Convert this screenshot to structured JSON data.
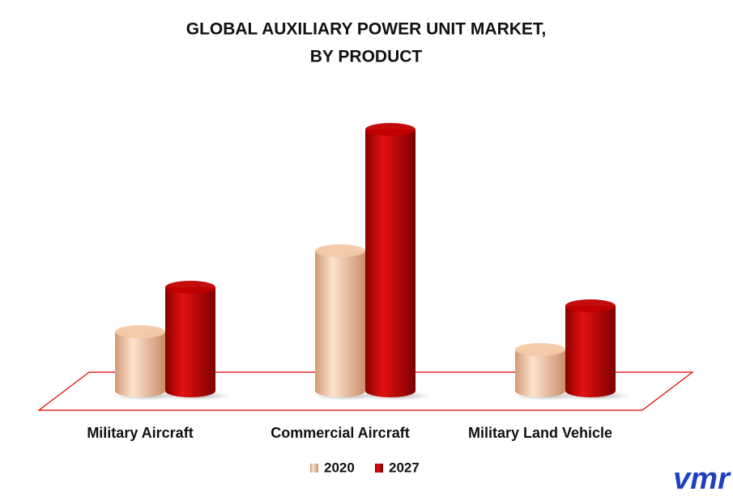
{
  "chart_data": {
    "type": "bar",
    "title": [
      "GLOBAL AUXILIARY POWER UNIT MARKET,",
      "BY PRODUCT"
    ],
    "categories": [
      "Military Aircraft",
      "Commercial Aircraft",
      "Military Land Vehicle"
    ],
    "series": [
      {
        "name": "2020",
        "color": "#f3c9a8",
        "values": [
          77,
          177,
          55
        ]
      },
      {
        "name": "2027",
        "color": "#c00000",
        "values": [
          132,
          327,
          109
        ]
      }
    ],
    "ylim": [
      0,
      330
    ],
    "logo": "vmr"
  }
}
